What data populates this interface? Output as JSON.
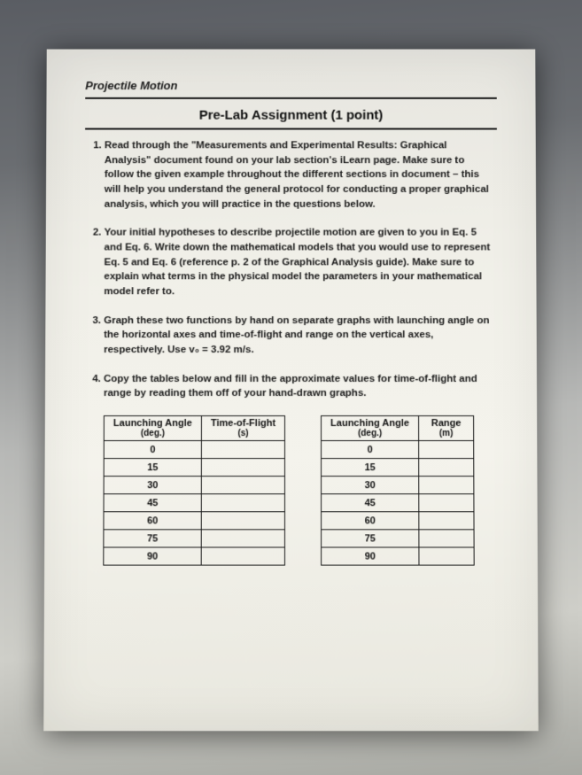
{
  "doc_title": "Projectile Motion",
  "section_title": "Pre-Lab Assignment (1 point)",
  "items": [
    "Read through the \"Measurements and Experimental Results: Graphical Analysis\" document found on your lab section's iLearn page. Make sure to follow the given example throughout the different sections in document – this will help you understand the general protocol for conducting a proper graphical analysis, which you will practice in the questions below.",
    "Your initial hypotheses to describe projectile motion are given to you in Eq. 5 and Eq. 6. Write down the mathematical models that you would use to represent Eq. 5 and Eq. 6 (reference p. 2 of the Graphical Analysis guide). Make sure to explain what terms in the physical model the parameters in your mathematical model refer to.",
    "Graph these two functions by hand on separate graphs with launching angle on the horizontal axes and time-of-flight and range on the vertical axes, respectively. Use v₀ = 3.92 m/s.",
    "Copy the tables below and fill in the approximate values for time-of-flight and range by reading them off of your hand-drawn graphs."
  ],
  "table1": {
    "headers": {
      "col1_top": "Launching Angle",
      "col1_sub": "(deg.)",
      "col2_top": "Time-of-Flight",
      "col2_sub": "(s)"
    },
    "rows": [
      {
        "angle": "0",
        "val": ""
      },
      {
        "angle": "15",
        "val": ""
      },
      {
        "angle": "30",
        "val": ""
      },
      {
        "angle": "45",
        "val": ""
      },
      {
        "angle": "60",
        "val": ""
      },
      {
        "angle": "75",
        "val": ""
      },
      {
        "angle": "90",
        "val": ""
      }
    ]
  },
  "table2": {
    "headers": {
      "col1_top": "Launching Angle",
      "col1_sub": "(deg.)",
      "col2_top": "Range",
      "col2_sub": "(m)"
    },
    "rows": [
      {
        "angle": "0",
        "val": ""
      },
      {
        "angle": "15",
        "val": ""
      },
      {
        "angle": "30",
        "val": ""
      },
      {
        "angle": "45",
        "val": ""
      },
      {
        "angle": "60",
        "val": ""
      },
      {
        "angle": "75",
        "val": ""
      },
      {
        "angle": "90",
        "val": ""
      }
    ]
  }
}
